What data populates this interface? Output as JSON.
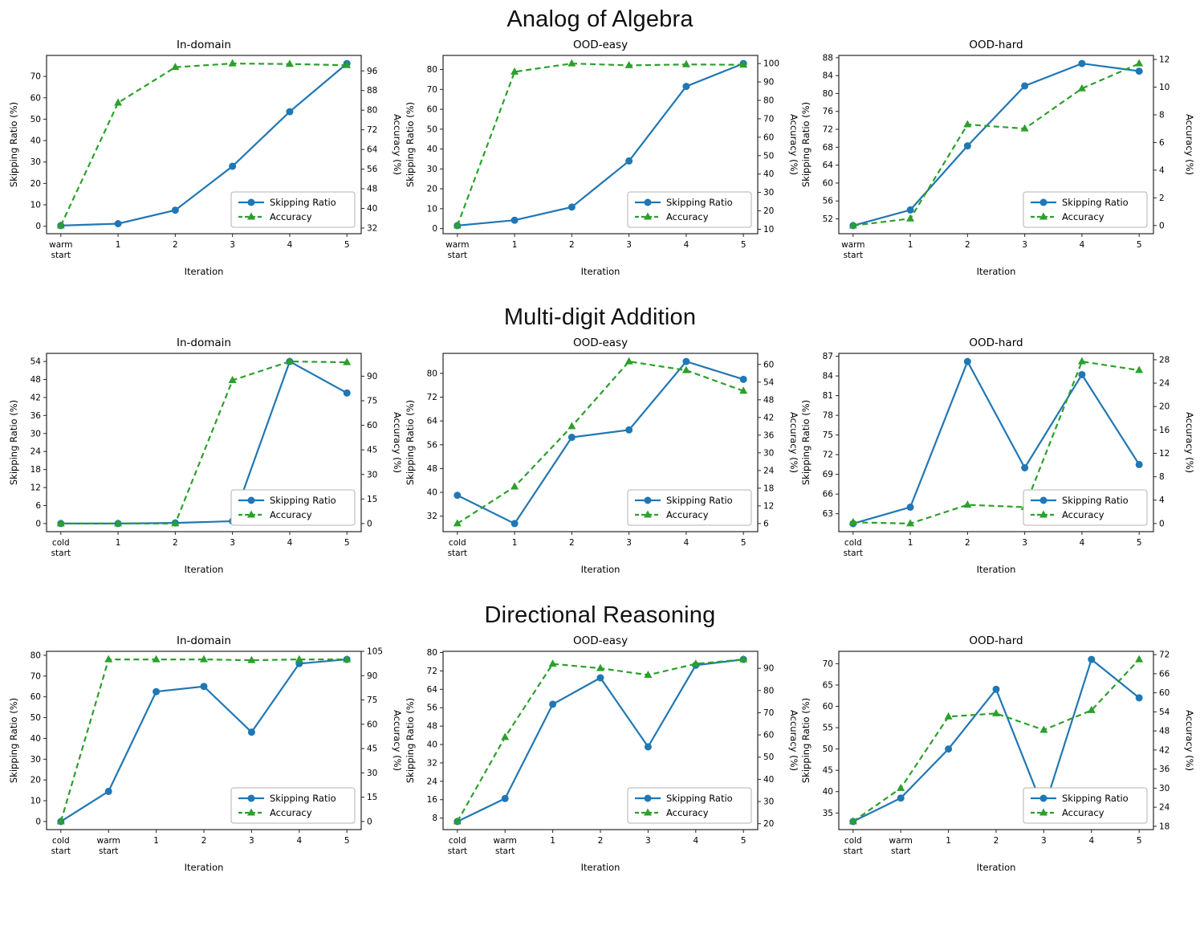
{
  "figure": {
    "legend": {
      "skipping": "Skipping Ratio",
      "accuracy": "Accuracy"
    },
    "colors": {
      "skipping": "#2077b4",
      "accuracy": "#2ca02c"
    },
    "line_styles": {
      "skipping": "solid",
      "accuracy": "dashed"
    },
    "markers": {
      "skipping": "circle",
      "accuracy": "triangle"
    },
    "xlabel": "Iteration",
    "ylabel_left": "Skipping Ratio (%)",
    "ylabel_right": "Accuracy (%)"
  },
  "chart_data": [
    {
      "type": "line",
      "row_title": "Analog of Algebra",
      "charts": [
        {
          "title": "In-domain",
          "xlabel": "Iteration",
          "x_tick_labels": [
            [
              "warm",
              "start"
            ],
            "1",
            "2",
            "3",
            "4",
            "5"
          ],
          "grid": false,
          "legend_position": "lower right",
          "left_axis": {
            "label": "Skipping Ratio (%)",
            "ticks": [
              0,
              10,
              20,
              30,
              40,
              50,
              60,
              70
            ],
            "range": [
              -3.49,
              79.79
            ]
          },
          "right_axis": {
            "label": "Accuracy (%)",
            "ticks": [
              32,
              40,
              48,
              56,
              64,
              72,
              80,
              88,
              96
            ],
            "range": [
              29.7,
              102.3
            ]
          },
          "series": [
            {
              "name": "Skipping Ratio",
              "axis": "left",
              "values": [
                0.3,
                1.2,
                7.5,
                28,
                53.5,
                76
              ]
            },
            {
              "name": "Accuracy",
              "axis": "right",
              "values": [
                33,
                83,
                97.5,
                99,
                98.8,
                98.3
              ]
            }
          ]
        },
        {
          "title": "OOD-easy",
          "xlabel": "Iteration",
          "x_tick_labels": [
            [
              "warm",
              "start"
            ],
            "1",
            "2",
            "3",
            "4",
            "5"
          ],
          "grid": false,
          "legend_position": "lower right",
          "left_axis": {
            "label": "Skipping Ratio (%)",
            "ticks": [
              0,
              10,
              20,
              30,
              40,
              50,
              60,
              70,
              80
            ],
            "range": [
              -2.58,
              87.08
            ]
          },
          "right_axis": {
            "label": "Accuracy (%)",
            "ticks": [
              10,
              20,
              30,
              40,
              50,
              60,
              70,
              80,
              90,
              100
            ],
            "range": [
              7.6,
              104.4
            ]
          },
          "series": [
            {
              "name": "Skipping Ratio",
              "axis": "left",
              "values": [
                1.5,
                4.2,
                10.8,
                34,
                71.5,
                83
              ]
            },
            {
              "name": "Accuracy",
              "axis": "right",
              "values": [
                12,
                95.5,
                100,
                99,
                99.5,
                99.3
              ]
            }
          ]
        },
        {
          "title": "OOD-hard",
          "xlabel": "Iteration",
          "x_tick_labels": [
            [
              "warm",
              "start"
            ],
            "1",
            "2",
            "3",
            "4",
            "5"
          ],
          "grid": false,
          "legend_position": "lower right",
          "left_axis": {
            "label": "Skipping Ratio (%)",
            "ticks": [
              52,
              56,
              60,
              64,
              68,
              72,
              76,
              80,
              84,
              88
            ],
            "range": [
              48.69,
              88.51
            ]
          },
          "right_axis": {
            "label": "Accuracy (%)",
            "ticks": [
              0,
              2,
              4,
              6,
              8,
              10,
              12
            ],
            "range": [
              -0.59,
              12.29
            ]
          },
          "series": [
            {
              "name": "Skipping Ratio",
              "axis": "left",
              "values": [
                50.5,
                54,
                68.3,
                81.7,
                86.7,
                85
              ]
            },
            {
              "name": "Accuracy",
              "axis": "right",
              "values": [
                0,
                0.5,
                7.3,
                7.0,
                9.9,
                11.7
              ]
            }
          ]
        }
      ]
    },
    {
      "type": "line",
      "row_title": "Multi-digit Addition",
      "charts": [
        {
          "title": "In-domain",
          "xlabel": "Iteration",
          "x_tick_labels": [
            [
              "cold",
              "start"
            ],
            "1",
            "2",
            "3",
            "4",
            "5"
          ],
          "grid": false,
          "legend_position": "lower right",
          "left_axis": {
            "label": "Skipping Ratio (%)",
            "ticks": [
              0,
              6,
              12,
              18,
              24,
              30,
              36,
              42,
              48,
              54
            ],
            "range": [
              -2.7,
              56.7
            ]
          },
          "right_axis": {
            "label": "Accuracy (%)",
            "ticks": [
              0,
              15,
              30,
              45,
              60,
              75,
              90
            ],
            "range": [
              -4.95,
              103.95
            ]
          },
          "series": [
            {
              "name": "Skipping Ratio",
              "axis": "left",
              "values": [
                0,
                0,
                0.2,
                0.8,
                54,
                43.5
              ]
            },
            {
              "name": "Accuracy",
              "axis": "right",
              "values": [
                0,
                0,
                0,
                87.5,
                99,
                98.5
              ]
            }
          ]
        },
        {
          "title": "OOD-easy",
          "xlabel": "Iteration",
          "x_tick_labels": [
            [
              "cold",
              "start"
            ],
            "1",
            "2",
            "3",
            "4",
            "5"
          ],
          "grid": false,
          "legend_position": "lower right",
          "left_axis": {
            "label": "Skipping Ratio (%)",
            "ticks": [
              32,
              40,
              48,
              56,
              64,
              72,
              80
            ],
            "range": [
              26.78,
              86.73
            ]
          },
          "right_axis": {
            "label": "Accuracy (%)",
            "ticks": [
              6,
              12,
              18,
              24,
              30,
              36,
              42,
              48,
              54,
              60
            ],
            "range": [
              3.25,
              63.75
            ]
          },
          "series": [
            {
              "name": "Skipping Ratio",
              "axis": "left",
              "values": [
                39,
                29.5,
                58.5,
                61,
                84,
                78
              ]
            },
            {
              "name": "Accuracy",
              "axis": "right",
              "values": [
                6,
                18.5,
                39,
                61,
                58,
                51
              ]
            }
          ]
        },
        {
          "title": "OOD-hard",
          "xlabel": "Iteration",
          "x_tick_labels": [
            [
              "cold",
              "start"
            ],
            "1",
            "2",
            "3",
            "4",
            "5"
          ],
          "grid": false,
          "legend_position": "lower right",
          "left_axis": {
            "label": "Skipping Ratio (%)",
            "ticks": [
              63,
              66,
              69,
              72,
              75,
              78,
              81,
              84,
              87
            ],
            "range": [
              60.27,
              87.44
            ]
          },
          "right_axis": {
            "label": "Accuracy (%)",
            "ticks": [
              0,
              4,
              8,
              12,
              16,
              20,
              24,
              28
            ],
            "range": [
              -1.39,
              29.09
            ]
          },
          "series": [
            {
              "name": "Skipping Ratio",
              "axis": "left",
              "values": [
                61.5,
                64,
                86.2,
                70,
                84.2,
                70.5
              ]
            },
            {
              "name": "Accuracy",
              "axis": "right",
              "values": [
                0.2,
                0,
                3.2,
                2.8,
                27.7,
                26.2
              ]
            }
          ]
        }
      ]
    },
    {
      "type": "line",
      "row_title": "Directional Reasoning",
      "charts": [
        {
          "title": "In-domain",
          "xlabel": "Iteration",
          "x_tick_labels": [
            [
              "cold",
              "start"
            ],
            [
              "warm",
              "start"
            ],
            "1",
            "2",
            "3",
            "4",
            "5"
          ],
          "grid": false,
          "legend_position": "lower right",
          "left_axis": {
            "label": "Skipping Ratio (%)",
            "ticks": [
              0,
              10,
              20,
              30,
              40,
              50,
              60,
              70,
              80
            ],
            "range": [
              -3.9,
              81.9
            ]
          },
          "right_axis": {
            "label": "Accuracy (%)",
            "ticks": [
              0,
              15,
              30,
              45,
              60,
              75,
              90,
              105
            ],
            "range": [
              -5,
              105
            ]
          },
          "series": [
            {
              "name": "Skipping Ratio",
              "axis": "left",
              "values": [
                0,
                14.5,
                62.5,
                65,
                43,
                76,
                78
              ]
            },
            {
              "name": "Accuracy",
              "axis": "right",
              "values": [
                0,
                100,
                100,
                100,
                99.5,
                100,
                100
              ]
            }
          ]
        },
        {
          "title": "OOD-easy",
          "xlabel": "Iteration",
          "x_tick_labels": [
            [
              "cold",
              "start"
            ],
            [
              "warm",
              "start"
            ],
            "1",
            "2",
            "3",
            "4",
            "5"
          ],
          "grid": false,
          "legend_position": "lower right",
          "left_axis": {
            "label": "Skipping Ratio (%)",
            "ticks": [
              8,
              16,
              24,
              32,
              40,
              48,
              56,
              64,
              72,
              80
            ],
            "range": [
              2.98,
              80.53
            ]
          },
          "right_axis": {
            "label": "Accuracy (%)",
            "ticks": [
              20,
              30,
              40,
              50,
              60,
              70,
              80,
              90
            ],
            "range": [
              17.35,
              97.65
            ]
          },
          "series": [
            {
              "name": "Skipping Ratio",
              "axis": "left",
              "values": [
                6.5,
                16.5,
                57.5,
                69,
                39,
                74.5,
                77
              ]
            },
            {
              "name": "Accuracy",
              "axis": "right",
              "values": [
                21,
                59,
                92,
                90,
                87,
                92,
                94
              ]
            }
          ]
        },
        {
          "title": "OOD-hard",
          "xlabel": "Iteration",
          "x_tick_labels": [
            [
              "cold",
              "start"
            ],
            [
              "warm",
              "start"
            ],
            "1",
            "2",
            "3",
            "4",
            "5"
          ],
          "grid": false,
          "legend_position": "lower right",
          "left_axis": {
            "label": "Skipping Ratio (%)",
            "ticks": [
              35,
              40,
              45,
              50,
              55,
              60,
              65,
              70
            ],
            "range": [
              31.1,
              72.9
            ]
          },
          "right_axis": {
            "label": "Accuracy (%)",
            "ticks": [
              18,
              24,
              30,
              36,
              42,
              48,
              54,
              60,
              66,
              72
            ],
            "range": [
              16.95,
              73.05
            ]
          },
          "series": [
            {
              "name": "Skipping Ratio",
              "axis": "left",
              "values": [
                33,
                38.5,
                50,
                64,
                35.8,
                71,
                62
              ]
            },
            {
              "name": "Accuracy",
              "axis": "right",
              "values": [
                19.5,
                30,
                52.5,
                53.5,
                48.3,
                54.5,
                70.5
              ]
            }
          ]
        }
      ]
    }
  ]
}
